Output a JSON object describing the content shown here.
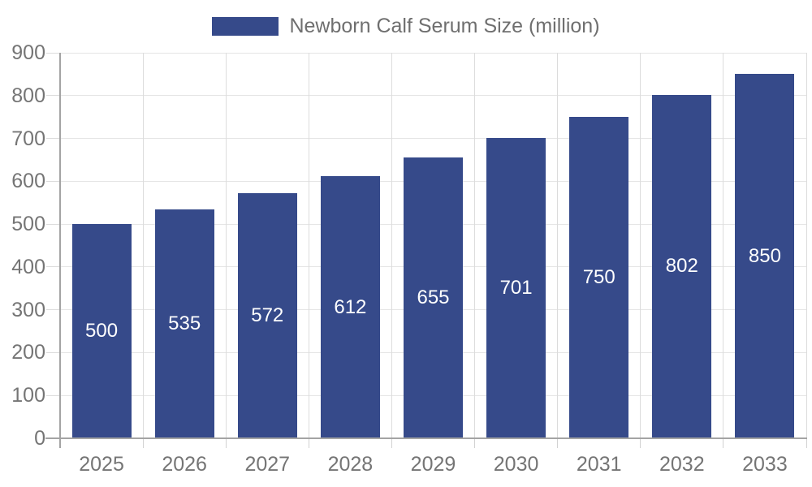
{
  "chart_data": {
    "type": "bar",
    "title": "",
    "legend": {
      "label": "Newborn Calf Serum Size (million)"
    },
    "categories": [
      "2025",
      "2026",
      "2027",
      "2028",
      "2029",
      "2030",
      "2031",
      "2032",
      "2033"
    ],
    "values": [
      500,
      535,
      572,
      612,
      655,
      701,
      750,
      802,
      850
    ],
    "xlabel": "",
    "ylabel": "",
    "ylim": [
      0,
      900
    ],
    "yticks": [
      0,
      100,
      200,
      300,
      400,
      500,
      600,
      700,
      800,
      900
    ],
    "grid": true,
    "legend_position": "top-center",
    "bar_value_labels_position": "inside-center",
    "colors": {
      "bar": "#364a8a",
      "bar_label": "#ffffff",
      "axis_label": "#757575",
      "legend_text": "#6f6f6f",
      "background": "#ffffff"
    }
  }
}
